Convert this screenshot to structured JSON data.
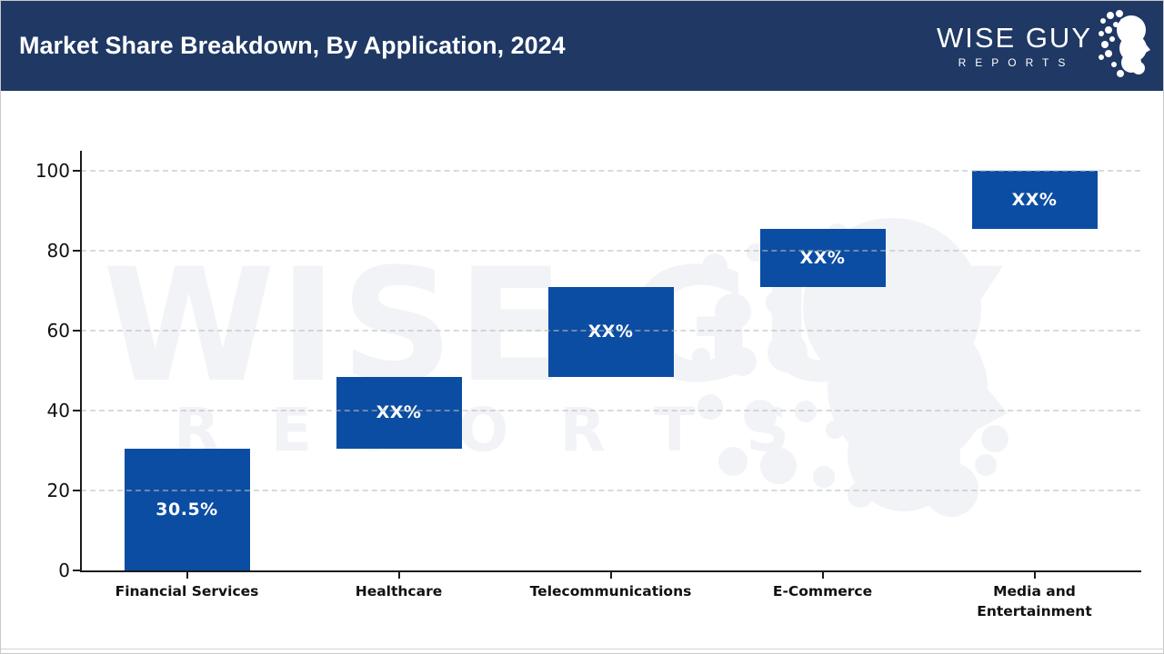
{
  "header": {
    "title": "Market Share Breakdown, By Application, 2024",
    "logo": {
      "name": "WISE GUY",
      "sub": "REPORTS"
    }
  },
  "watermark": {
    "line1": "WISE GUY",
    "line2": "REPORTS"
  },
  "colors": {
    "header_bg": "#1f3864",
    "bar": "#0b4da2",
    "axis": "#1b1b1b",
    "grid": "#b9bcc2",
    "tick_text": "#111111",
    "bar_label": "#ffffff",
    "watermark": "#f2f3f6"
  },
  "chart_data": {
    "type": "bar",
    "subtype": "waterfall",
    "title": "Market Share Breakdown, By Application, 2024",
    "categories": [
      "Financial Services",
      "Healthcare",
      "Telecommunications",
      "E-Commerce",
      "Media and Entertainment"
    ],
    "segments": [
      {
        "category": "Financial Services",
        "start": 0,
        "end": 30.5,
        "label": "30.5%"
      },
      {
        "category": "Healthcare",
        "start": 30.5,
        "end": 48.5,
        "label": "XX%"
      },
      {
        "category": "Telecommunications",
        "start": 48.5,
        "end": 71,
        "label": "XX%"
      },
      {
        "category": "E-Commerce",
        "start": 71,
        "end": 85.5,
        "label": "XX%"
      },
      {
        "category": "Media and Entertainment",
        "start": 85.5,
        "end": 100,
        "label": "XX%"
      }
    ],
    "ylim": [
      0,
      100
    ],
    "yticks": [
      0,
      20,
      40,
      60,
      80,
      100
    ],
    "xlabel": "",
    "ylabel": "",
    "grid": "horizontal-dashed",
    "legend": "none",
    "bar_color": "#0b4da2",
    "value_label_color": "#ffffff"
  }
}
